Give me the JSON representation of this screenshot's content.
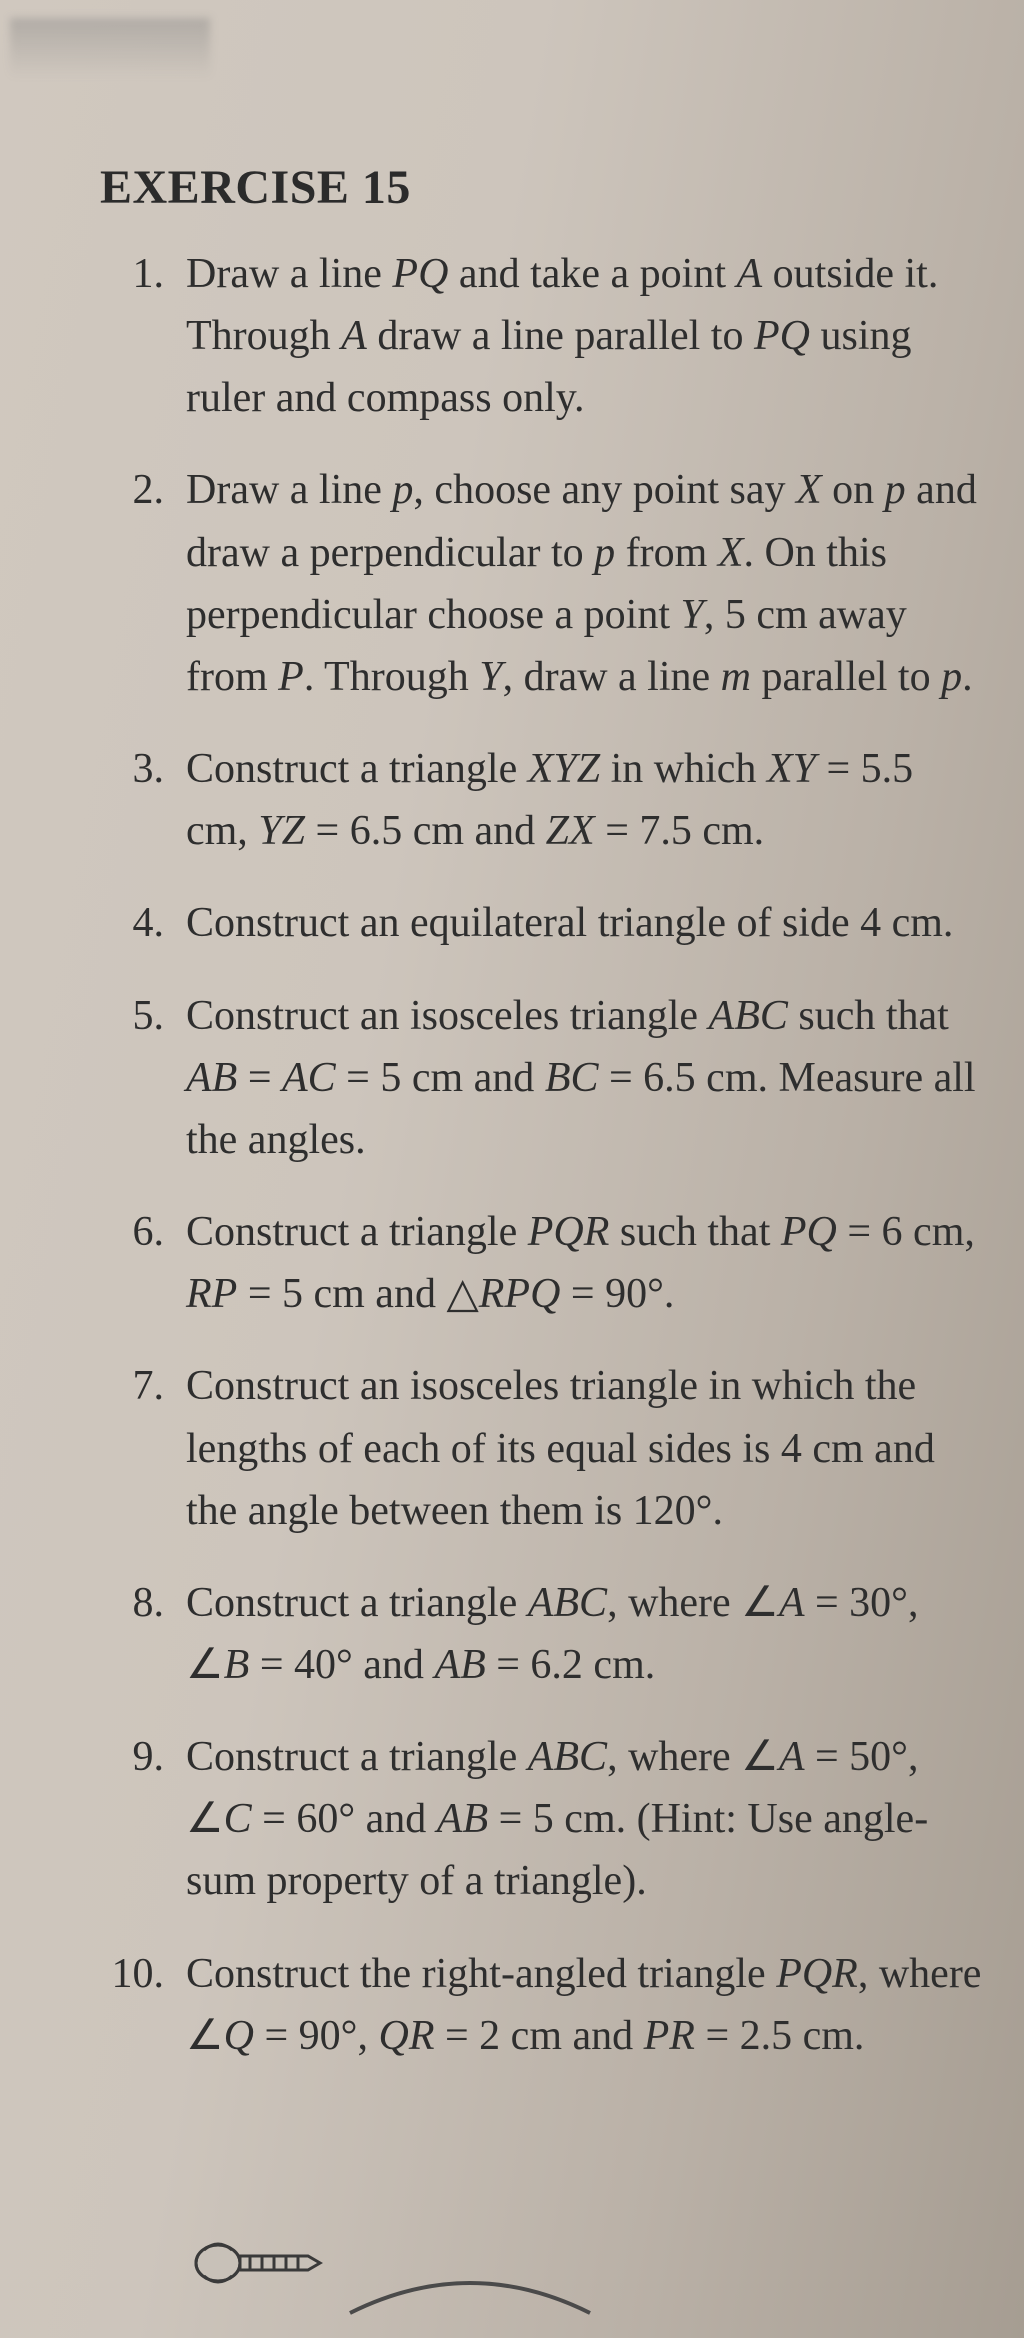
{
  "title": "EXERCISE 15",
  "items": [
    {
      "num": "1.",
      "html": "Draw a line <span class=\"i\">PQ</span> and take a point <span class=\"i\">A</span> outside it. Through <span class=\"i\">A</span> draw a line parallel to <span class=\"i\">PQ</span> using ruler and compass only."
    },
    {
      "num": "2.",
      "html": "Draw a line <span class=\"i\">p</span>, choose any point say <span class=\"i\">X</span> on <span class=\"i\">p</span> and draw a perpendicular to <span class=\"i\">p</span>  from <span class=\"i\">X</span>. On this perpendicular  choose a point <span class=\"i\">Y</span>, 5 cm away from <span class=\"i\">P</span>. Through <span class=\"i\">Y</span>, draw a line <span class=\"i\">m</span> parallel to <span class=\"i\">p</span>."
    },
    {
      "num": "3.",
      "html": "Construct a triangle <span class=\"i\">XYZ</span> in which <span class=\"i\">XY</span> = 5.5 cm, <span class=\"i\">YZ</span> = 6.5 cm and <span class=\"i\">ZX</span> = 7.5 cm."
    },
    {
      "num": "4.",
      "html": "Construct an equilateral triangle of side 4 cm."
    },
    {
      "num": "5.",
      "html": "Construct an isosceles triangle <span class=\"i\">ABC</span> such that <span class=\"i\">AB</span> = <span class=\"i\">AC</span> = 5 cm and <span class=\"i\">BC</span> = 6.5 cm. Measure all the angles."
    },
    {
      "num": "6.",
      "html": "Construct a triangle <span class=\"i\">PQR</span> such that <span class=\"i\">PQ</span> = 6 cm, <span class=\"i\">RP</span> = 5 cm and △<span class=\"i\">RPQ</span> = 90°."
    },
    {
      "num": "7.",
      "html": "Construct an isosceles triangle in which the lengths of each of its equal sides is 4 cm and the angle between them is 120°."
    },
    {
      "num": "8.",
      "html": "Construct a triangle <span class=\"i\">ABC</span>, where ∠<span class=\"i\">A</span> = 30°, ∠<span class=\"i\">B</span> = 40° and <span class=\"i\">AB</span> = 6.2 cm."
    },
    {
      "num": "9.",
      "html": "Construct a triangle <span class=\"i\">ABC</span>, where ∠<span class=\"i\">A</span> = 50°, ∠<span class=\"i\">C</span> = 60° and <span class=\"i\">AB</span> = 5 cm. (Hint: Use angle-sum property of a triangle)."
    },
    {
      "num": "10.",
      "html": "Construct the right-angled triangle <span class=\"i\">PQR</span>, where ∠<span class=\"i\">Q</span> = 90°, <span class=\"i\">QR</span> = 2 cm and <span class=\"i\">PR</span> = 2.5 cm."
    }
  ],
  "colors": {
    "text": "#2a2a2a",
    "bg_left": "#d0c8bf",
    "bg_right": "#a69d92"
  },
  "typography": {
    "title_fontsize": 48,
    "body_fontsize": 42,
    "font_family": "Times New Roman, serif",
    "title_weight": "bold",
    "line_height": 1.48
  }
}
